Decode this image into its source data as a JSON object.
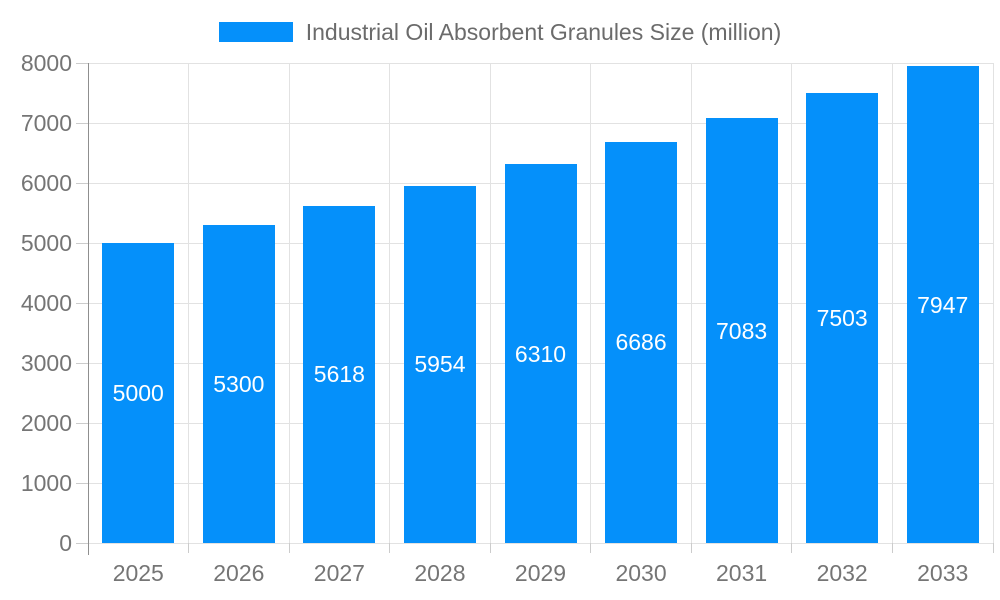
{
  "legend": {
    "label": "Industrial Oil Absorbent Granules Size (million)"
  },
  "chart_data": {
    "type": "bar",
    "title": "Industrial Oil Absorbent Granules Size (million)",
    "categories": [
      "2025",
      "2026",
      "2027",
      "2028",
      "2029",
      "2030",
      "2031",
      "2032",
      "2033"
    ],
    "values": [
      5000,
      5300,
      5618,
      5954,
      6310,
      6686,
      7083,
      7503,
      7947
    ],
    "xlabel": "",
    "ylabel": "",
    "ylim": [
      0,
      8000
    ],
    "yticks": [
      0,
      1000,
      2000,
      3000,
      4000,
      5000,
      6000,
      7000,
      8000
    ],
    "grid": true,
    "legend_position": "top-center",
    "value_label_position": "inside-center"
  },
  "colors": {
    "bar": "#0590fa",
    "grid": "#e2e2e2",
    "axis_line": "#8f8f8f",
    "tick": "#cccccc",
    "axis_text": "#757575",
    "legend_text": "#6b6b6b",
    "value_label": "#ffffff",
    "background": "#ffffff"
  }
}
